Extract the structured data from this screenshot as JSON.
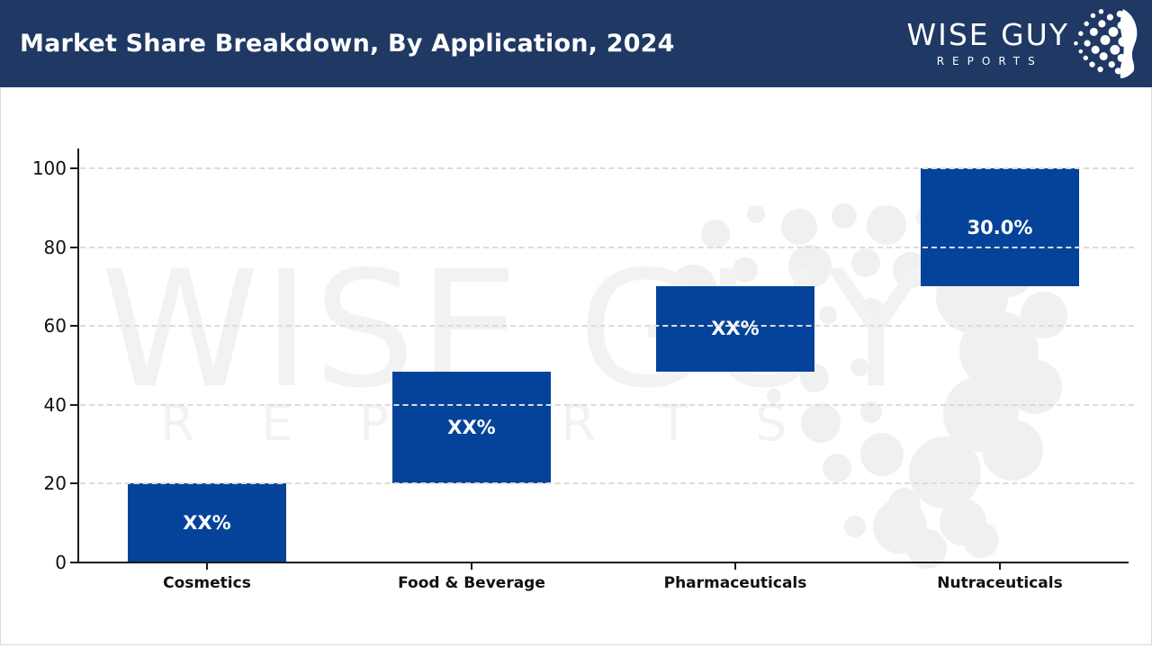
{
  "header": {
    "title": "Market Share Breakdown, By Application, 2024",
    "logo": {
      "line1": "WISE GUY",
      "line2": "REPORTS"
    }
  },
  "watermark": {
    "line1": "WISE GUY",
    "line2": "REPORTS"
  },
  "colors": {
    "header_bg": "#1f3864",
    "bar": "#05439b",
    "gridline": "#dcdcdc",
    "axis": "#1a1a1a",
    "watermark": "#f2f2f2"
  },
  "chart_data": {
    "type": "bar",
    "subtype": "waterfall",
    "title": "Market Share Breakdown, By Application, 2024",
    "categories": [
      "Cosmetics",
      "Food & Beverage",
      "Pharmaceuticals",
      "Nutraceuticals"
    ],
    "values": [
      20,
      28.5,
      21.5,
      30
    ],
    "bases": [
      0,
      20,
      48.5,
      70
    ],
    "bar_labels": [
      "XX%",
      "XX%",
      "XX%",
      "30.0%"
    ],
    "yticks": [
      0,
      20,
      40,
      60,
      80,
      100
    ],
    "ylim": [
      0,
      105
    ],
    "xlabel": "",
    "ylabel": "",
    "grid": "horizontal-dashed",
    "legend": "none"
  }
}
